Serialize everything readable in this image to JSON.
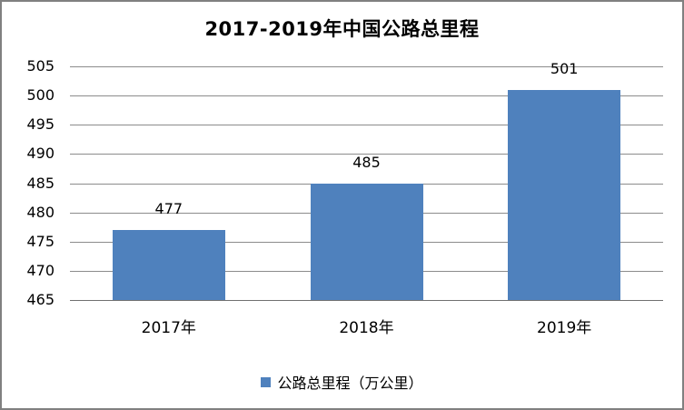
{
  "chart_data": {
    "type": "bar",
    "title": "2017-2019年中国公路总里程",
    "categories": [
      "2017年",
      "2018年",
      "2019年"
    ],
    "series": [
      {
        "name": "公路总里程（万公里）",
        "values": [
          477,
          485,
          501
        ]
      }
    ],
    "data_labels": [
      477,
      485,
      501
    ],
    "ylim": [
      465,
      505
    ],
    "ytick_step": 5,
    "ytick_labels": [
      505,
      500,
      495,
      490,
      485,
      480,
      475,
      470,
      465
    ],
    "xlabel": "",
    "ylabel": "",
    "grid": true,
    "legend_position": "bottom",
    "legend_label": "公路总里程（万公里）",
    "colors": {
      "bar": "#4F81BD",
      "gridline": "#8C8C8C",
      "axis_line": "#707070",
      "frame_border": "#808080",
      "text": "#000000",
      "background": "#FFFFFF"
    }
  }
}
